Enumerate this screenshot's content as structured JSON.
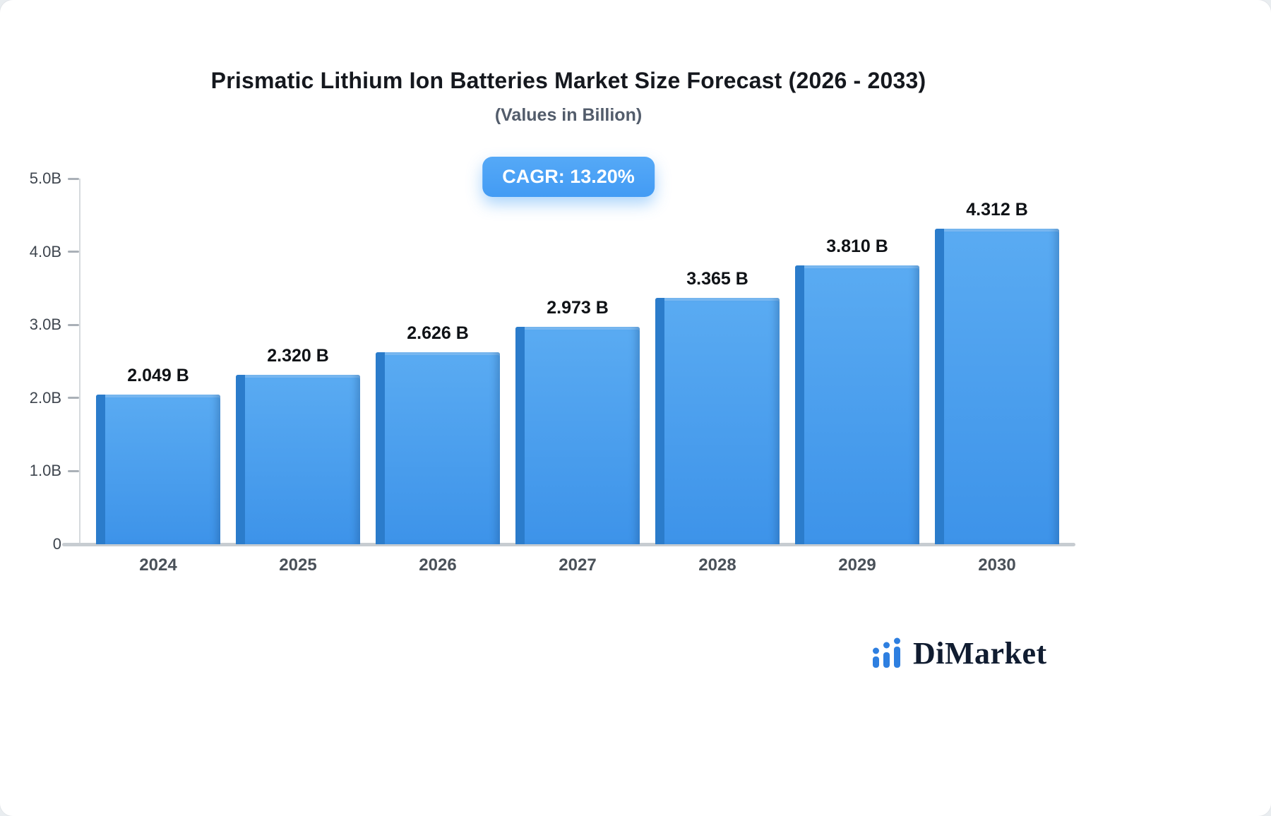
{
  "page": {
    "background": "#e9edf0",
    "card_background": "#ffffff"
  },
  "header": {
    "title": "Prismatic Lithium Ion Batteries Market Size Forecast (2026 - 2033)",
    "subtitle": "(Values in Billion)"
  },
  "badge": {
    "label": "CAGR: 13.20%",
    "background": "#4aa2f6",
    "text_color": "#ffffff"
  },
  "chart_data": {
    "type": "bar",
    "title": "Prismatic Lithium Ion Batteries Market Size Forecast (2026 - 2033)",
    "subtitle": "(Values in Billion)",
    "cagr": "13.20%",
    "categories": [
      "2024",
      "2025",
      "2026",
      "2027",
      "2028",
      "2029",
      "2030"
    ],
    "values": [
      2.049,
      2.32,
      2.626,
      2.973,
      3.365,
      3.81,
      4.312
    ],
    "value_labels": [
      "2.049 B",
      "2.320 B",
      "2.626 B",
      "2.973 B",
      "3.365 B",
      "3.810 B",
      "4.312 B"
    ],
    "xlabel": "",
    "ylabel": "",
    "ylim": [
      0,
      5
    ],
    "yticks": [
      {
        "value": 5,
        "label": "5.0B"
      },
      {
        "value": 4,
        "label": "4.0B"
      },
      {
        "value": 3,
        "label": "3.0B"
      },
      {
        "value": 2,
        "label": "2.0B"
      },
      {
        "value": 1,
        "label": "1.0B"
      },
      {
        "value": 0,
        "label": "0"
      }
    ],
    "grid": false,
    "legend": false,
    "bar_colors": {
      "front_top": "#5aabf2",
      "front_bottom": "#3d93e9",
      "side": "#2b7ccb"
    }
  },
  "footer": {
    "brand": "DiMarket",
    "logo_icon": "bar-chart-icon",
    "brand_color": "#101c30",
    "icon_color": "#2e7fe0"
  }
}
